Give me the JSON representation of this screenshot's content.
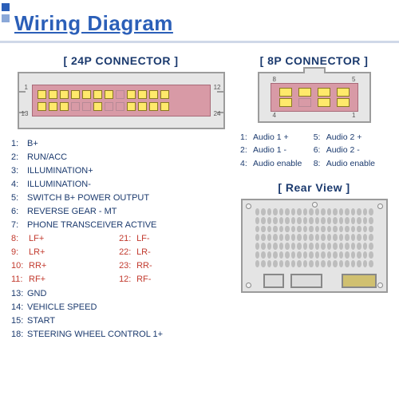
{
  "title": "Wiring Diagram",
  "colors": {
    "accent": "#2b5fb8",
    "heading": "#1b3a6e",
    "housing_bg": "#e6e6e6",
    "housing_border": "#9c9c9c",
    "pin_body": "#d89aa6",
    "pin_fill": "#ffe96b",
    "red": "#c23a2e"
  },
  "connector24": {
    "title": "[ 24P CONNECTOR ]",
    "corner_labels": {
      "tl": "1",
      "tr": "12",
      "bl": "13",
      "br": "24"
    },
    "pins": {
      "1": "B+",
      "2": "RUN/ACC",
      "3": "ILLUMINATION+",
      "4": "ILLUMINATION-",
      "5": "SWITCH B+ POWER OUTPUT",
      "6": "REVERSE GEAR - MT",
      "7": "PHONE TRANSCEIVER ACTIVE",
      "8": "LF+",
      "9": "LR+",
      "10": "RR+",
      "11": "RF+",
      "13": "GND",
      "14": "VEHICLE SPEED",
      "15": "START",
      "18": "STEERING WHEEL CONTROL 1+",
      "21": "LF-",
      "22": "LR-",
      "23": "RR-",
      "12": "RF-"
    }
  },
  "connector8": {
    "title": "[ 8P CONNECTOR ]",
    "corner_labels": {
      "tl": "8",
      "tr": "5",
      "bl": "4",
      "br": "1"
    },
    "pins": {
      "1": "Audio 1 +",
      "2": "Audio 1 -",
      "4": "Audio enable",
      "5": "Audio 2 +",
      "6": "Audio 2 -",
      "8": "Audio enable"
    }
  },
  "rear_view": {
    "title": "[ Rear View ]"
  }
}
